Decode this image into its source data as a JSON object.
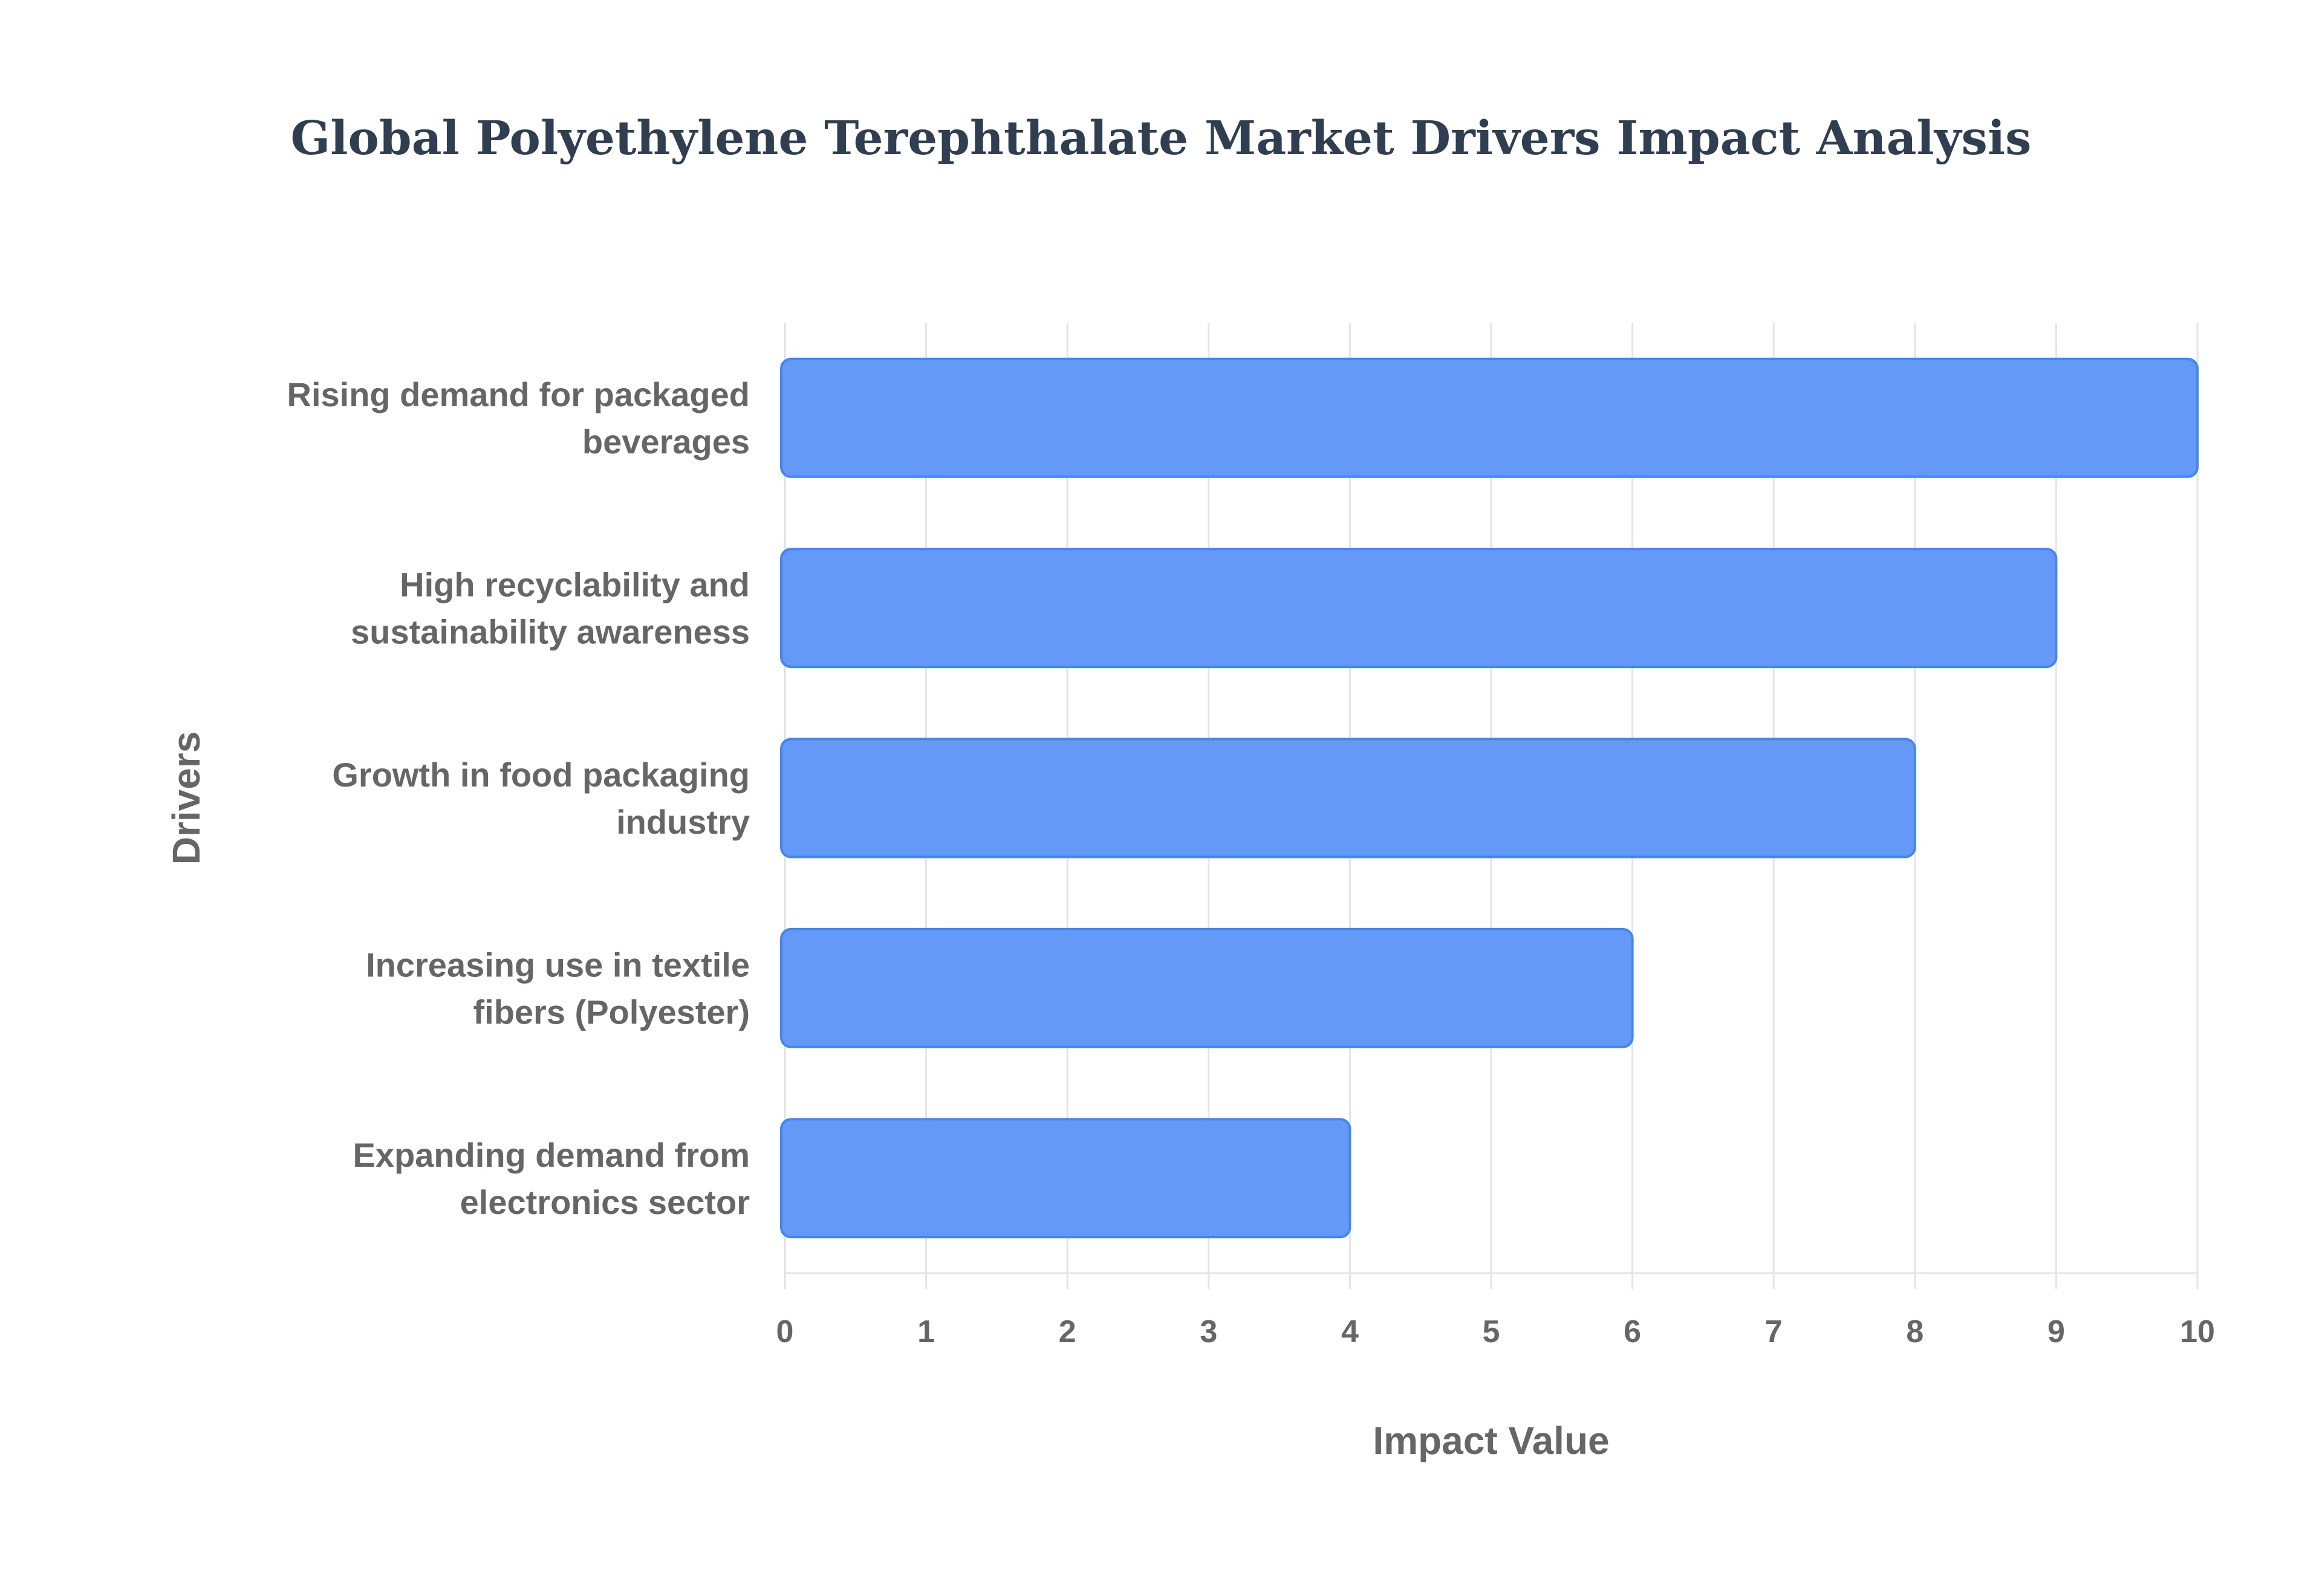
{
  "chart_data": {
    "type": "bar",
    "orientation": "horizontal",
    "title": "Global Polyethylene Terephthalate Market Drivers Impact Analysis",
    "xlabel": "Impact Value",
    "ylabel": "Drivers",
    "categories": [
      [
        "Rising demand for packaged",
        "beverages"
      ],
      [
        "High recyclability and",
        "sustainability awareness"
      ],
      [
        "Growth in food packaging",
        "industry"
      ],
      [
        "Increasing use in textile",
        "fibers (Polyester)"
      ],
      [
        "Expanding demand from",
        "electronics sector"
      ]
    ],
    "values": [
      10,
      9,
      8,
      6,
      4
    ],
    "xlim": [
      0,
      10
    ],
    "xticks": [
      0,
      1,
      2,
      3,
      4,
      5,
      6,
      7,
      8,
      9,
      10
    ],
    "grid": true,
    "bar_color": "#4285f4",
    "bar_fill": "#6499f7",
    "title_color": "#2f3e50",
    "label_color": "#666666"
  }
}
